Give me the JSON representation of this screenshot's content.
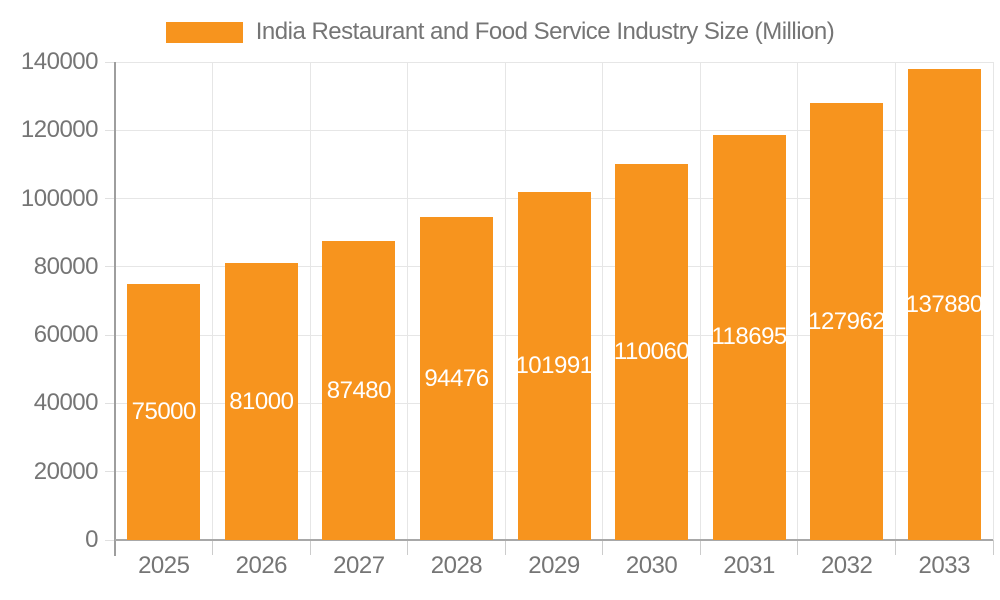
{
  "chart_data": {
    "type": "bar",
    "title": "India Restaurant and Food Service Industry Size (Million)",
    "categories": [
      "2025",
      "2026",
      "2027",
      "2028",
      "2029",
      "2030",
      "2031",
      "2032",
      "2033"
    ],
    "values": [
      75000,
      81000,
      87480,
      94476,
      101991,
      110060,
      118695,
      127962,
      137880
    ],
    "value_labels": [
      "75000",
      "81000",
      "87480",
      "94476",
      "101991",
      "110060",
      "118695",
      "127962",
      "137880"
    ],
    "xlabel": "",
    "ylabel": "",
    "ylim": [
      0,
      140000
    ],
    "ytick_step": 20000,
    "yticks": [
      "0",
      "20000",
      "40000",
      "60000",
      "80000",
      "100000",
      "120000",
      "140000"
    ],
    "grid": true,
    "legend_position": "top",
    "colors": {
      "bar": "#F7941E",
      "bar_value_text": "#FFFFFF",
      "axis_text": "#757575",
      "gridline": "#E6E6E6",
      "axis_line": "#9E9E9E"
    }
  }
}
